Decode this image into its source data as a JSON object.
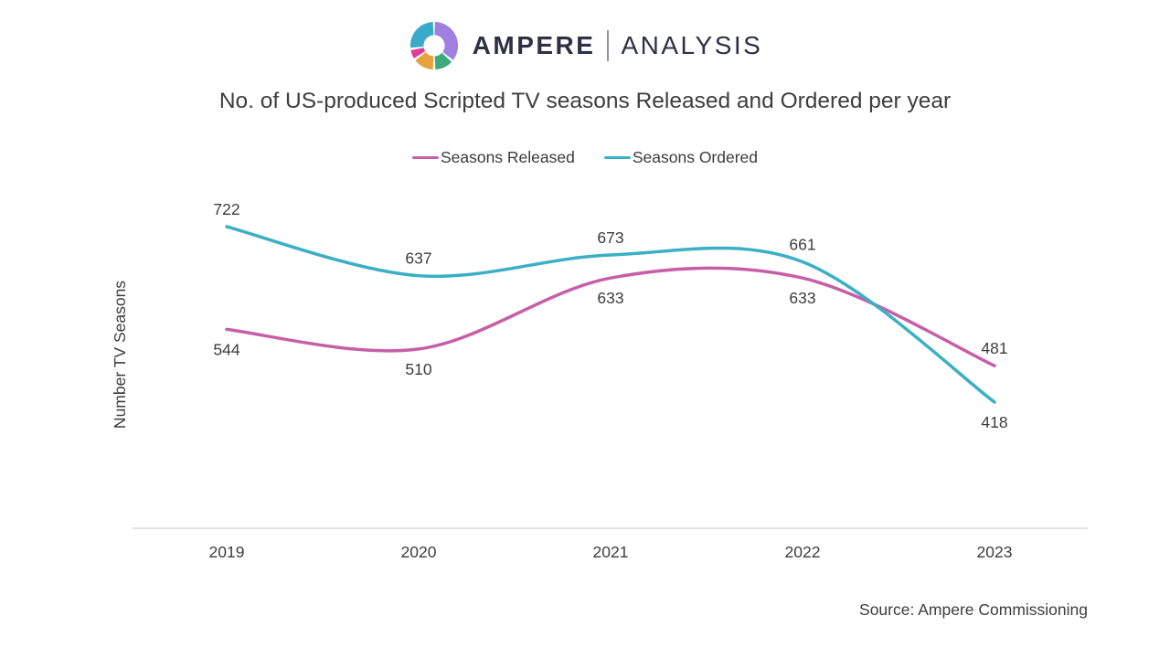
{
  "header": {
    "brand_primary": "AMPERE",
    "brand_secondary": "ANALYSIS",
    "logo_colors": {
      "purple": "#9f80e0",
      "green": "#3fa97e",
      "yellow": "#e4a33d",
      "magenta": "#e03a9c",
      "teal": "#39aac9"
    }
  },
  "title": "No. of US-produced Scripted TV seasons Released and Ordered per year",
  "source": "Source: Ampere Commissioning",
  "chart_data": {
    "type": "line",
    "categories": [
      "2019",
      "2020",
      "2021",
      "2022",
      "2023"
    ],
    "series": [
      {
        "name": "Seasons Released",
        "color": "#c75fa7",
        "values": [
          544,
          510,
          633,
          633,
          481
        ],
        "label_sides": [
          "below",
          "below",
          "below",
          "below",
          "above"
        ]
      },
      {
        "name": "Seasons Ordered",
        "color": "#3bafc4",
        "values": [
          722,
          637,
          673,
          661,
          418
        ],
        "label_sides": [
          "above",
          "above",
          "above",
          "above",
          "below"
        ]
      }
    ],
    "title": "No. of US-produced Scripted TV seasons Released and Ordered per year",
    "xlabel": "",
    "ylabel": "Number TV Seasons",
    "grid": false,
    "y_axis_ticks_visible": false,
    "legend_position": "top",
    "line_style": "spline",
    "data_labels": true
  }
}
